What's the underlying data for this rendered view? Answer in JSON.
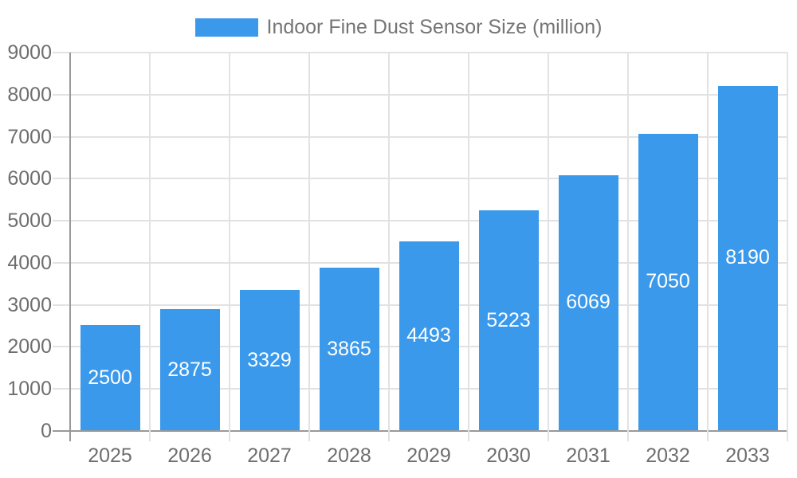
{
  "chart_data": {
    "type": "bar",
    "title": "Indoor Fine Dust Sensor Size (million)",
    "legend_position": "top",
    "categories": [
      "2025",
      "2026",
      "2027",
      "2028",
      "2029",
      "2030",
      "2031",
      "2032",
      "2033"
    ],
    "series": [
      {
        "name": "Indoor Fine Dust Sensor Size (million)",
        "values": [
          2500,
          2875,
          3329,
          3865,
          4493,
          5223,
          6069,
          7050,
          8190
        ]
      }
    ],
    "xlabel": "",
    "ylabel": "",
    "ylim": [
      0,
      9000
    ],
    "y_ticks": [
      0,
      1000,
      2000,
      3000,
      4000,
      5000,
      6000,
      7000,
      8000,
      9000
    ],
    "grid": true,
    "bar_value_labels_visible": true
  },
  "colors": {
    "bar": "#3B99EB",
    "bar_label": "#FFFFFF",
    "grid": "#E2E2E2",
    "axis": "#999999",
    "tick_text": "#6E6E6E",
    "legend_text": "#757575",
    "background": "#FFFFFF"
  }
}
